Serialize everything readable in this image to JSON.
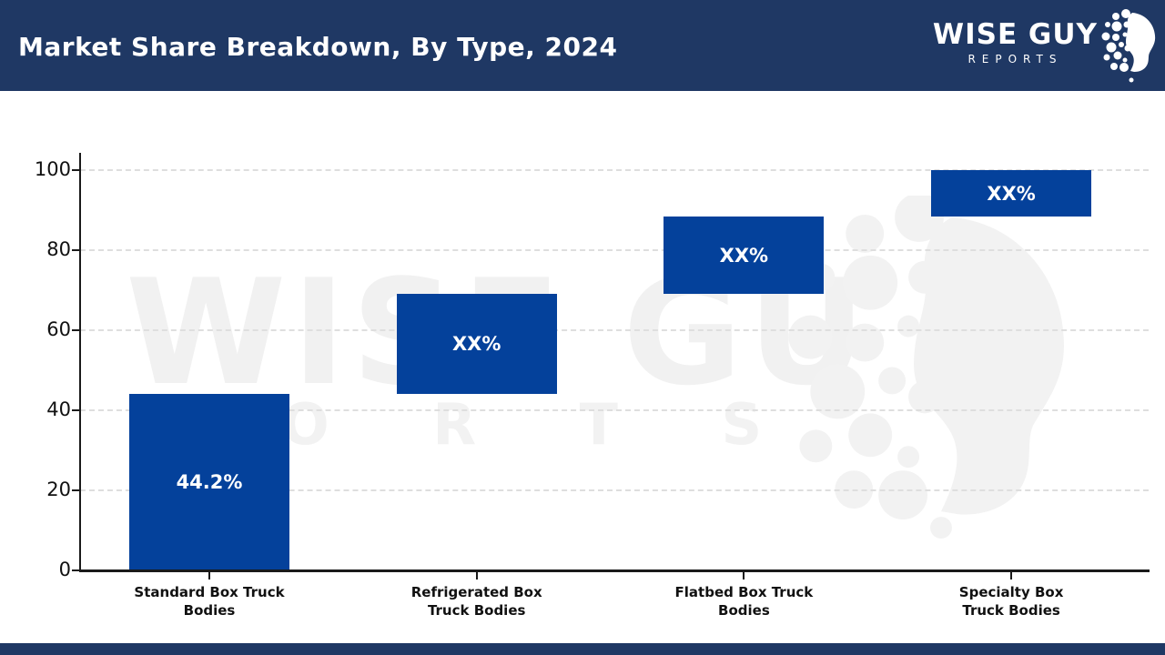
{
  "header": {
    "title": "Market Share Breakdown, By Type, 2024",
    "background": "#1f3864",
    "logo": {
      "line1": "WISE GUY",
      "line2": "REPORTS"
    }
  },
  "watermark": {
    "line1": "WISE GU",
    "line2": "P O R T S"
  },
  "footer": {
    "background": "#1f3864"
  },
  "chart_data": {
    "type": "bar",
    "subtype": "waterfall",
    "title": "Market Share Breakdown, By Type, 2024",
    "categories": [
      "Standard Box Truck\nBodies",
      "Refrigerated Box\nTruck Bodies",
      "Flatbed Box Truck\nBodies",
      "Specialty Box\nTruck Bodies"
    ],
    "bars": [
      {
        "label": "44.2%",
        "start": 0,
        "end": 44.2
      },
      {
        "label": "XX%",
        "start": 44.2,
        "end": 69
      },
      {
        "label": "XX%",
        "start": 69,
        "end": 88.3
      },
      {
        "label": "XX%",
        "start": 88.3,
        "end": 100
      }
    ],
    "yticks": [
      0,
      20,
      40,
      60,
      80,
      100
    ],
    "ylim": [
      0,
      104
    ],
    "xlabel": "",
    "ylabel": "",
    "bar_color": "#04419b",
    "grid": "horizontal-dashed",
    "legend": false
  }
}
